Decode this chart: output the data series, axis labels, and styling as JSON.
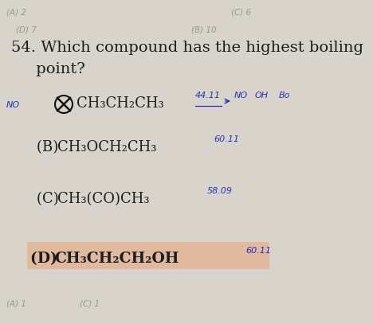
{
  "bg_color": "#d8d4cc",
  "question_number": "54.",
  "question_text": " Which compound has the highest boiling",
  "question_text2": "     point?",
  "option_A_formula": "CH₃CH₂CH₃",
  "option_B_label": "(B) ",
  "option_B_formula": "CH₃OCH₂CH₃",
  "option_B_note": "60.11",
  "option_C_label": "(C) ",
  "option_C_formula": "CH₃(CO)CH₃",
  "option_C_note": "58.09",
  "option_D_label": "(D) ",
  "option_D_formula": "CH₃CH₂CH₂OH",
  "option_D_note": "60.11",
  "wm_tl": "(A) 2",
  "wm_tr": "(C) 6",
  "wm_ml": "(D) 7",
  "wm_mr": "(B) 10",
  "no_label": "NO",
  "note_A": "44.11",
  "note_A2": "NO",
  "note_A3": "OH",
  "note_A4": "Bo",
  "font_main": "#1c1c1c",
  "font_hw": "#2233bb",
  "font_wm": "#999988",
  "highlight_color": "#e8a882",
  "cross_color": "#111111"
}
